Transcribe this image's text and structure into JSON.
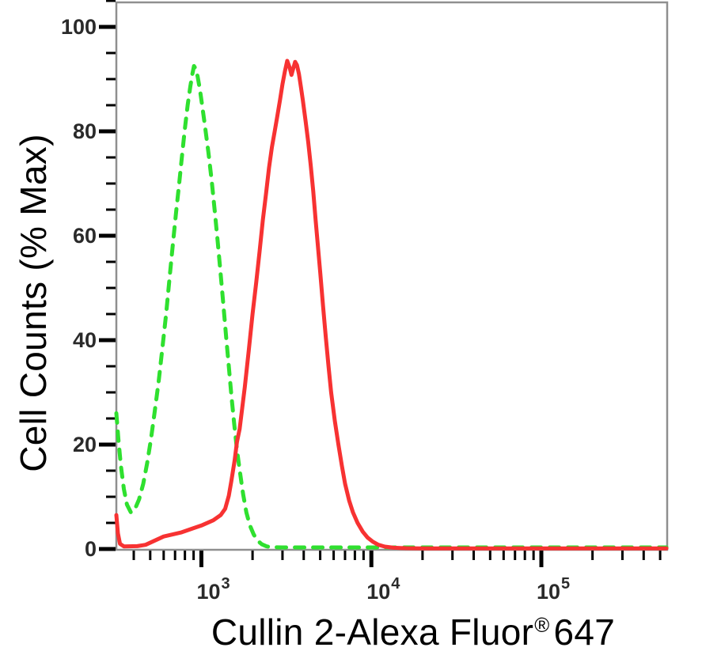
{
  "figure": {
    "kind": "flow-cytometry-overlay-histogram",
    "background_color": "#ffffff"
  },
  "axes": {
    "y": {
      "title": "Cell Counts (% Max)",
      "tick_labels": [
        "0",
        "20",
        "40",
        "60",
        "80",
        "100"
      ]
    },
    "x": {
      "title_main": "Cullin 2-Alexa Fluor",
      "title_sup": "®",
      "title_suffix": "647",
      "tick_labels_display": [
        "10³",
        "10⁴",
        "10⁵"
      ]
    }
  },
  "chart_data": {
    "type": "line",
    "subtype": "flow-cytometry-overlay-histogram",
    "title": "",
    "xlabel": "Cullin 2-Alexa Fluor® 647",
    "ylabel": "Cell Counts (% Max)",
    "x_scale": "log",
    "xlim": [
      316,
      550000
    ],
    "ylim": [
      0,
      105
    ],
    "grid": false,
    "legend": "none",
    "frame_color": "#8f8f8f",
    "tick_color": "#000000",
    "tick_label_color": "#2a2a2a",
    "x_major_ticks": [
      1000,
      10000,
      100000
    ],
    "x_major_tick_labels": [
      {
        "base": "10",
        "exp": "3"
      },
      {
        "base": "10",
        "exp": "4"
      },
      {
        "base": "10",
        "exp": "5"
      }
    ],
    "x_minor_ticks": [
      400,
      500,
      600,
      700,
      800,
      900,
      2000,
      3000,
      4000,
      5000,
      6000,
      7000,
      8000,
      9000,
      20000,
      30000,
      40000,
      50000,
      60000,
      70000,
      80000,
      90000,
      200000,
      300000,
      400000,
      500000
    ],
    "y_major_ticks": [
      0,
      20,
      40,
      60,
      80,
      100
    ],
    "y_minor_ticks": [
      5,
      10,
      15,
      25,
      30,
      35,
      45,
      50,
      55,
      65,
      70,
      75,
      85,
      90,
      95,
      105
    ],
    "series": [
      {
        "name": "green-dashed",
        "color": "#2fe02f",
        "line_style": "dashed",
        "line_width": 5,
        "peak": {
          "x": 905,
          "y": 92.5
        },
        "points": [
          [
            316,
            26
          ],
          [
            325,
            21
          ],
          [
            336,
            16
          ],
          [
            350,
            11.5
          ],
          [
            365,
            8.5
          ],
          [
            385,
            7
          ],
          [
            405,
            7.5
          ],
          [
            430,
            9.5
          ],
          [
            455,
            12.5
          ],
          [
            480,
            16.5
          ],
          [
            505,
            21
          ],
          [
            530,
            26
          ],
          [
            560,
            32
          ],
          [
            590,
            38.5
          ],
          [
            620,
            45
          ],
          [
            650,
            52
          ],
          [
            680,
            58.5
          ],
          [
            710,
            64.5
          ],
          [
            740,
            70
          ],
          [
            770,
            75.5
          ],
          [
            800,
            80.5
          ],
          [
            830,
            85
          ],
          [
            860,
            88.5
          ],
          [
            885,
            91
          ],
          [
            905,
            92.5
          ],
          [
            925,
            92
          ],
          [
            950,
            90.5
          ],
          [
            980,
            88
          ],
          [
            1010,
            85
          ],
          [
            1050,
            81
          ],
          [
            1100,
            76
          ],
          [
            1150,
            70.5
          ],
          [
            1200,
            64.5
          ],
          [
            1250,
            58.5
          ],
          [
            1300,
            52.5
          ],
          [
            1350,
            46.5
          ],
          [
            1400,
            40.5
          ],
          [
            1450,
            35
          ],
          [
            1500,
            29.5
          ],
          [
            1560,
            24
          ],
          [
            1620,
            19
          ],
          [
            1690,
            14.5
          ],
          [
            1760,
            10.5
          ],
          [
            1840,
            7
          ],
          [
            1930,
            4.5
          ],
          [
            2030,
            2.8
          ],
          [
            2140,
            1.6
          ],
          [
            2270,
            0.9
          ],
          [
            2420,
            0.5
          ],
          [
            2600,
            0.35
          ],
          [
            3000,
            0.3
          ],
          [
            4000,
            0.3
          ],
          [
            6000,
            0.3
          ],
          [
            10000,
            0.3
          ],
          [
            20000,
            0.3
          ],
          [
            50000,
            0.3
          ],
          [
            120000,
            0.3
          ],
          [
            300000,
            0.3
          ],
          [
            545000,
            0.3
          ]
        ]
      },
      {
        "name": "red-solid",
        "color": "#f73232",
        "line_style": "solid",
        "line_width": 5,
        "peak": {
          "x": 3200,
          "y": 93.5
        },
        "points": [
          [
            316,
            6.5
          ],
          [
            323,
            3
          ],
          [
            332,
            1
          ],
          [
            350,
            0.5
          ],
          [
            420,
            0.55
          ],
          [
            470,
            0.8
          ],
          [
            600,
            2.4
          ],
          [
            765,
            3.2
          ],
          [
            900,
            4
          ],
          [
            1000,
            4.5
          ],
          [
            1175,
            5.5
          ],
          [
            1300,
            6.5
          ],
          [
            1380,
            7.7
          ],
          [
            1450,
            10.2
          ],
          [
            1500,
            13
          ],
          [
            1570,
            17
          ],
          [
            1620,
            20.5
          ],
          [
            1680,
            23
          ],
          [
            1800,
            31
          ],
          [
            1900,
            38
          ],
          [
            2000,
            45
          ],
          [
            2100,
            51
          ],
          [
            2200,
            57
          ],
          [
            2300,
            63
          ],
          [
            2400,
            68
          ],
          [
            2500,
            73
          ],
          [
            2600,
            77
          ],
          [
            2700,
            80
          ],
          [
            2800,
            83
          ],
          [
            2900,
            86
          ],
          [
            3000,
            89
          ],
          [
            3100,
            91.5
          ],
          [
            3200,
            93.5
          ],
          [
            3300,
            92.3
          ],
          [
            3390,
            90.8
          ],
          [
            3480,
            92.2
          ],
          [
            3560,
            93.3
          ],
          [
            3650,
            92.7
          ],
          [
            3750,
            91
          ],
          [
            3850,
            88.5
          ],
          [
            3950,
            86
          ],
          [
            4100,
            82
          ],
          [
            4250,
            78
          ],
          [
            4400,
            73.5
          ],
          [
            4550,
            68.5
          ],
          [
            4700,
            63
          ],
          [
            4850,
            58
          ],
          [
            5000,
            53
          ],
          [
            5200,
            46.5
          ],
          [
            5400,
            40.5
          ],
          [
            5600,
            35
          ],
          [
            5800,
            30
          ],
          [
            6100,
            24.5
          ],
          [
            6400,
            20
          ],
          [
            6700,
            16
          ],
          [
            7000,
            12.5
          ],
          [
            7400,
            9.3
          ],
          [
            7800,
            7
          ],
          [
            8300,
            5
          ],
          [
            8900,
            3.3
          ],
          [
            9500,
            2.2
          ],
          [
            10200,
            1.4
          ],
          [
            11000,
            0.8
          ],
          [
            12000,
            0.45
          ],
          [
            13500,
            0.25
          ],
          [
            16000,
            0.15
          ],
          [
            20000,
            0.12
          ],
          [
            30000,
            0.12
          ],
          [
            60000,
            0.12
          ],
          [
            120000,
            0.12
          ],
          [
            250000,
            0.12
          ],
          [
            450000,
            0.12
          ],
          [
            545000,
            0.12
          ]
        ]
      }
    ]
  }
}
